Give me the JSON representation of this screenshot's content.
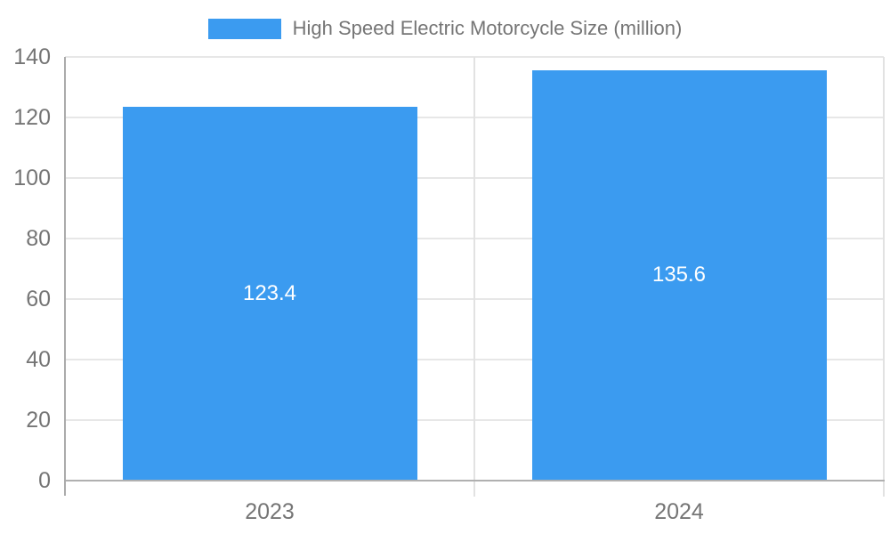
{
  "chart_data": {
    "type": "bar",
    "title": "High Speed Electric Motorcycle Size (million)",
    "categories": [
      "2023",
      "2024"
    ],
    "series": [
      {
        "name": "High Speed Electric Motorcycle Size (million)",
        "values": [
          123.4,
          135.6
        ]
      }
    ],
    "data_labels": [
      "123.4",
      "135.6"
    ],
    "xlabel": "",
    "ylabel": "",
    "ylim": [
      0,
      140
    ],
    "yticks": [
      0,
      20,
      40,
      60,
      80,
      100,
      120,
      140
    ],
    "grid": true,
    "legend_position": "top-center",
    "bar_color": "#3b9bf0",
    "value_label_color": "#ffffff",
    "axis_text_color": "#757575"
  }
}
